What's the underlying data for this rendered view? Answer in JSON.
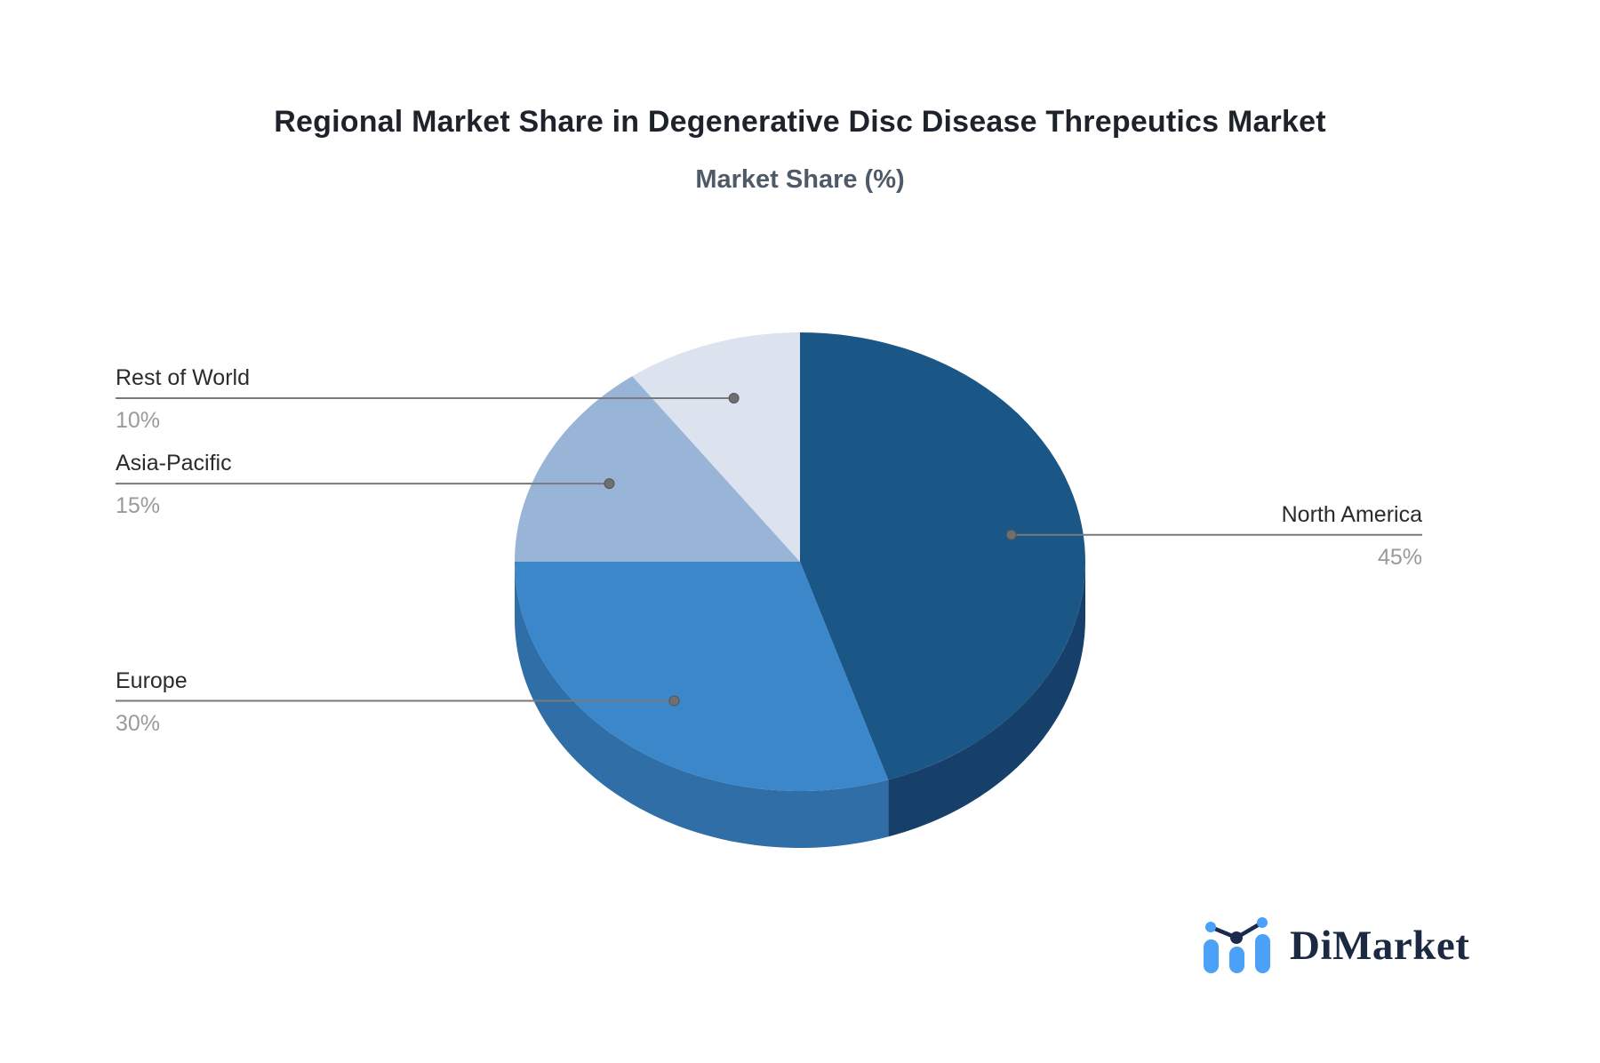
{
  "header": {
    "title": "Regional Market Share in Degenerative Disc Disease Threpeutics Market",
    "subtitle": "Market Share (%)"
  },
  "chart_data": {
    "type": "pie",
    "title": "Regional Market Share in Degenerative Disc Disease Threpeutics Market",
    "subtitle": "Market Share (%)",
    "unit": "%",
    "start_angle": "top",
    "direction": "clockwise",
    "effect": "3d",
    "legend_position": "outside-callouts",
    "labels": [
      "North America",
      "Europe",
      "Asia-Pacific",
      "Rest of World"
    ],
    "values": [
      45,
      30,
      15,
      10
    ],
    "slices": [
      {
        "label": "North America",
        "value": 45,
        "display": "45%",
        "color": "#1B5786",
        "side_color": "#16406A",
        "callout_side": "right"
      },
      {
        "label": "Europe",
        "value": 30,
        "display": "30%",
        "color": "#3B87C9",
        "side_color": "#2F6EA6",
        "callout_side": "left"
      },
      {
        "label": "Asia-Pacific",
        "value": 15,
        "display": "15%",
        "color": "#98B5D8",
        "side_color": "#7E9FC6",
        "callout_side": "left"
      },
      {
        "label": "Rest of World",
        "value": 10,
        "display": "10%",
        "color": "#DCE3EE",
        "side_color": "#B9C6DA",
        "callout_side": "left"
      }
    ],
    "callout_style": {
      "line_color": "#7A7A7A",
      "dot_color": "#6F6F6F",
      "dot_ring_color": "#555555",
      "label_color": "#2B2B2B",
      "value_color": "#9A9A9A"
    }
  },
  "branding": {
    "logo_text": "DiMarket",
    "logo_icon": "bar-chart-trend-icon",
    "logo_text_color": "#1B2942",
    "logo_icon_bar_color": "#4BA0F7",
    "logo_icon_line_color": "#1C2B4D"
  }
}
